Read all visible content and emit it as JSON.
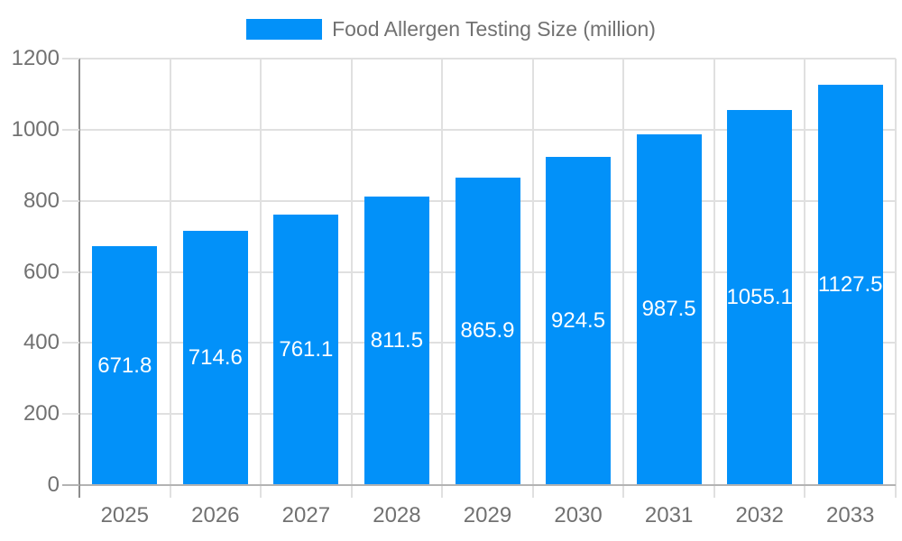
{
  "chart_data": {
    "type": "bar",
    "title": "Food Allergen Testing Size (million)",
    "legend": {
      "label": "Food Allergen Testing Size (million)",
      "position": "top"
    },
    "categories": [
      "2025",
      "2026",
      "2027",
      "2028",
      "2029",
      "2030",
      "2031",
      "2032",
      "2033"
    ],
    "series": [
      {
        "name": "Food Allergen Testing Size (million)",
        "values": [
          671.8,
          714.6,
          761.1,
          811.5,
          865.9,
          924.5,
          987.5,
          1055.1,
          1127.5
        ]
      }
    ],
    "data_labels": [
      "671.8",
      "714.6",
      "761.1",
      "811.5",
      "865.9",
      "924.5",
      "987.5",
      "1055.1",
      "1127.5"
    ],
    "xlabel": "",
    "ylabel": "",
    "ylim": [
      0,
      1200
    ],
    "yticks": [
      0,
      200,
      400,
      600,
      800,
      1000,
      1200
    ],
    "grid": true,
    "colors": {
      "bar": "#0291F9",
      "bar_label": "#FFFFFF",
      "axis_text": "#717171",
      "gridline": "#E0E0E0",
      "baseline": "#B3B3B3",
      "y_axis_line": "#8C8C8C",
      "background": "#FFFFFF"
    }
  }
}
